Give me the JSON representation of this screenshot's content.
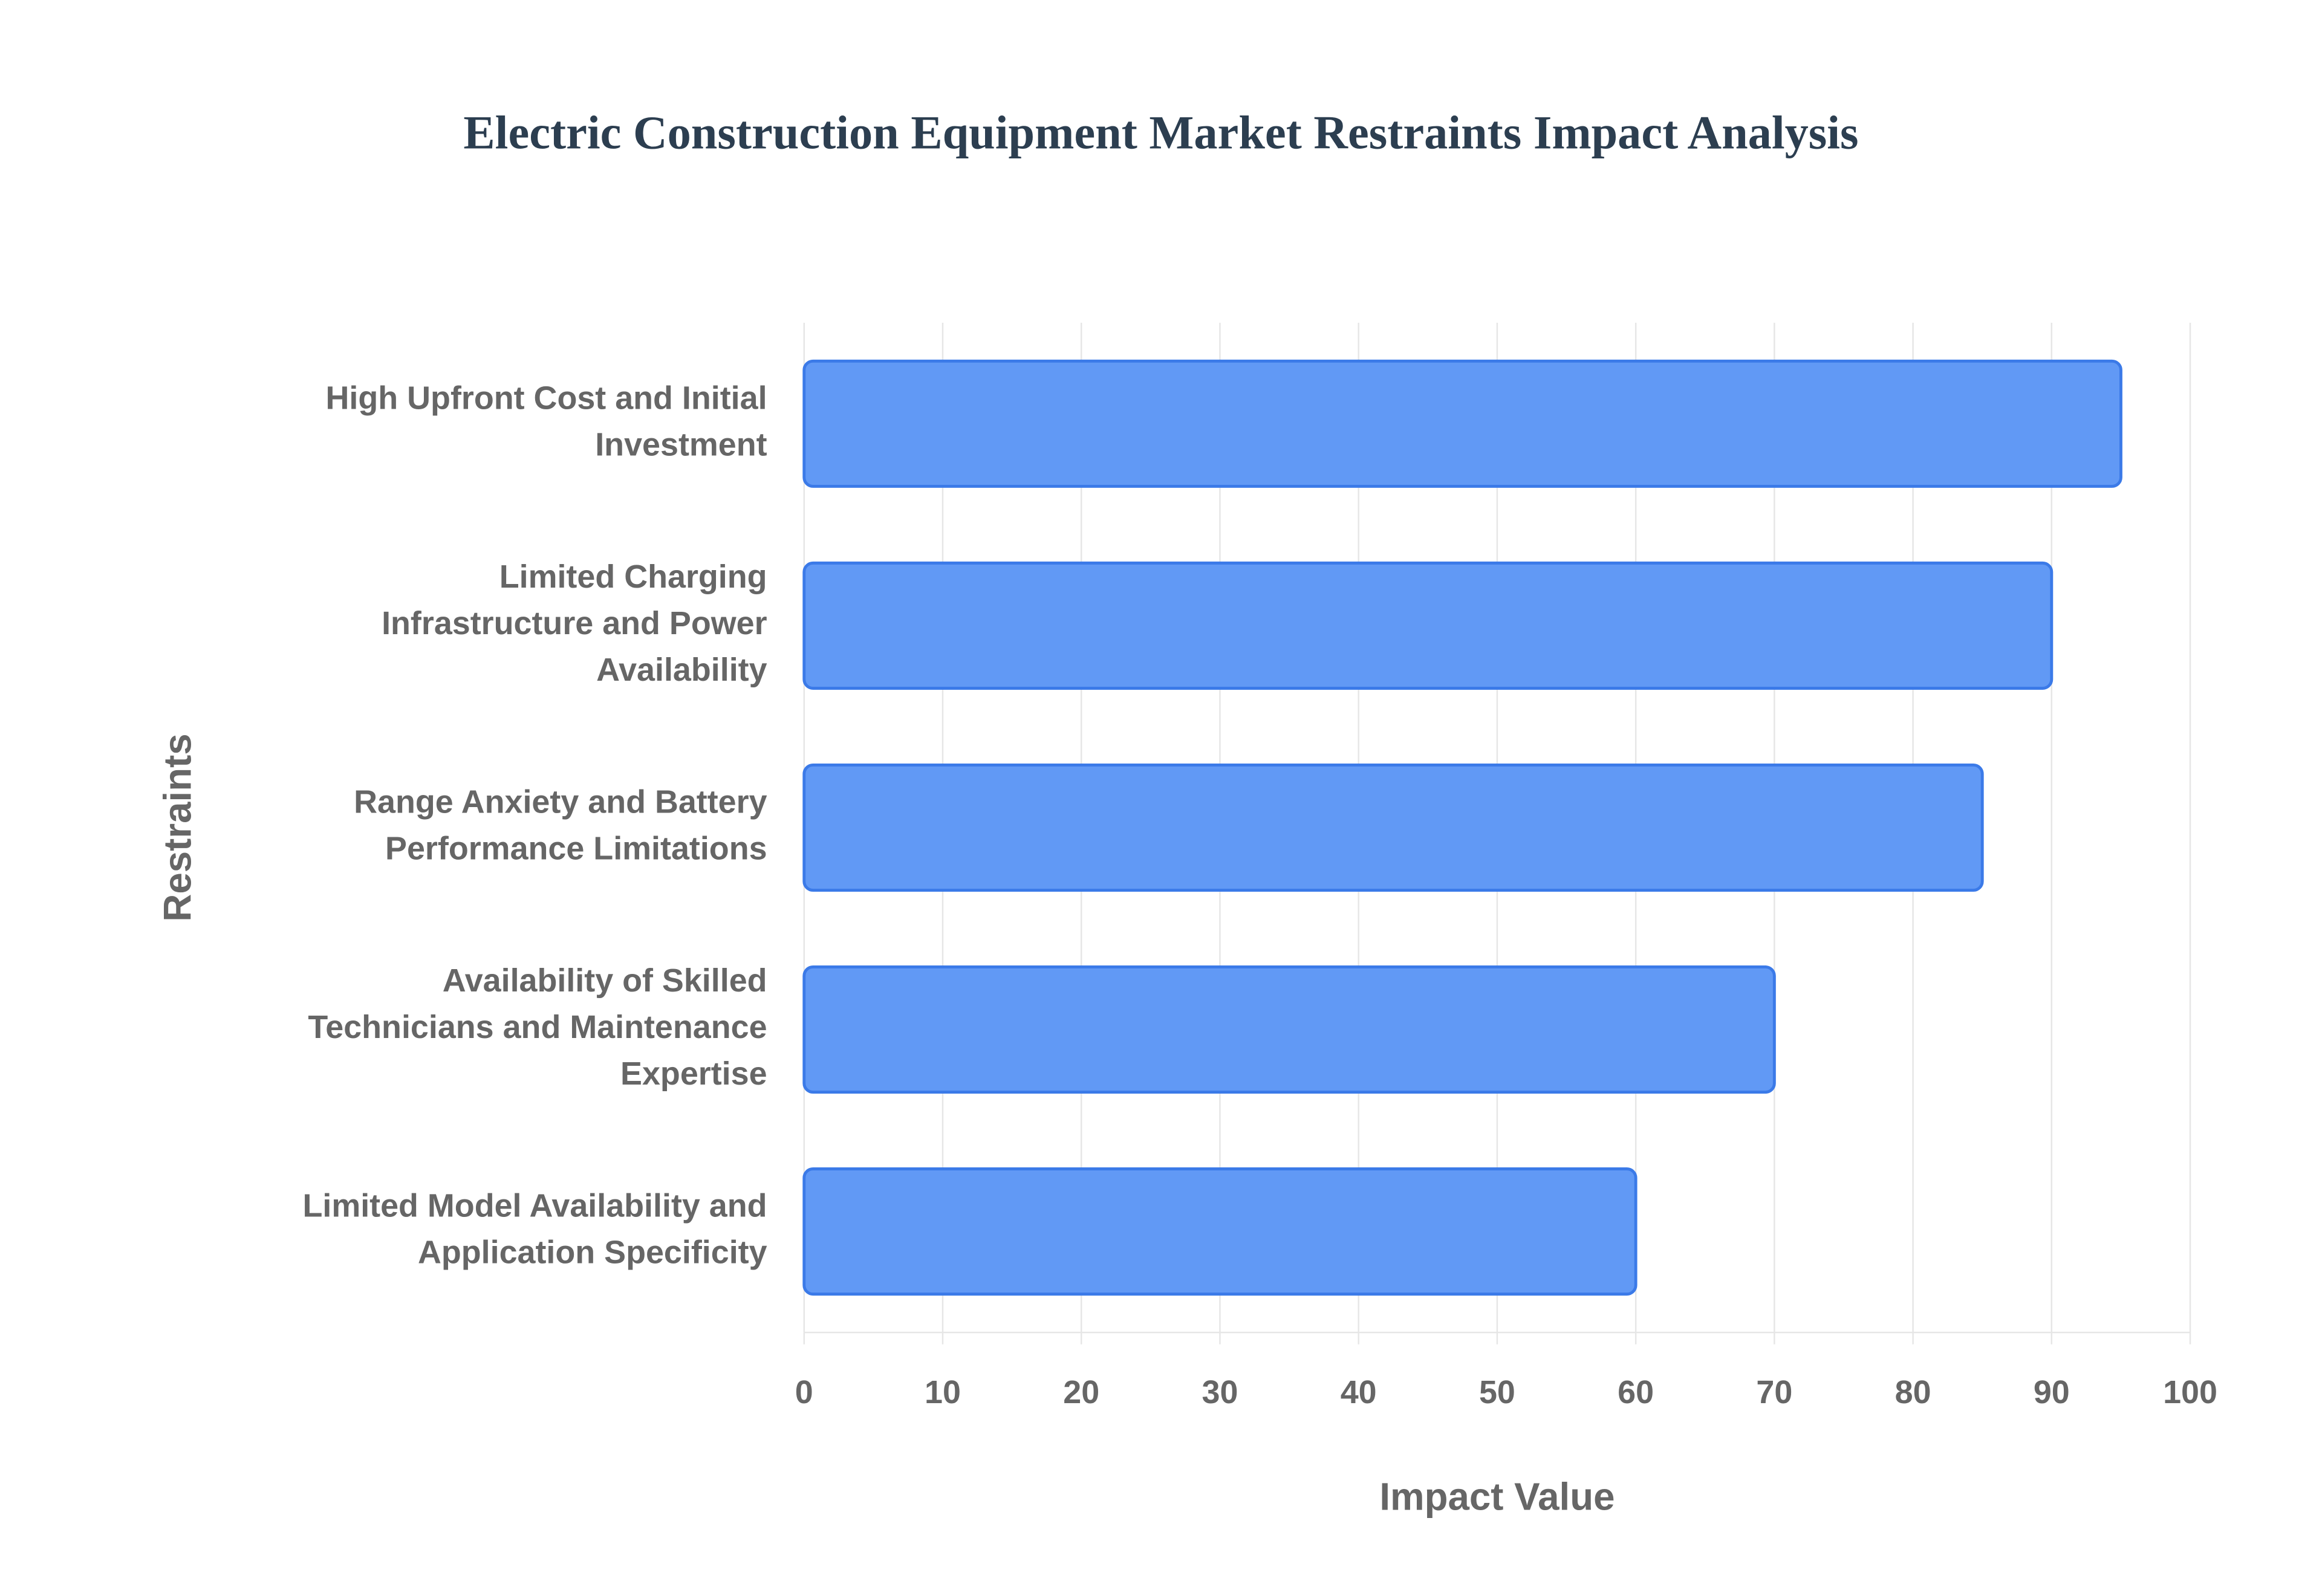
{
  "chart_data": {
    "type": "bar",
    "orientation": "horizontal",
    "title": "Electric Construction Equipment Market Restraints Impact Analysis",
    "x_label": "Impact Value",
    "y_label": "Restraints",
    "categories": [
      "High Upfront Cost and Initial Investment",
      "Limited Charging Infrastructure and Power Availability",
      "Range Anxiety and Battery Performance Limitations",
      "Availability of Skilled Technicians and Maintenance Expertise",
      "Limited Model Availability and Application Specificity"
    ],
    "values": [
      95,
      90,
      85,
      70,
      60
    ],
    "color": "#6199f5",
    "edge_color": "#3b7ae8",
    "xlim": [
      0,
      100
    ],
    "xticks": [
      0,
      10,
      20,
      30,
      40,
      50,
      60,
      70,
      80,
      90,
      100
    ],
    "grid": true
  }
}
